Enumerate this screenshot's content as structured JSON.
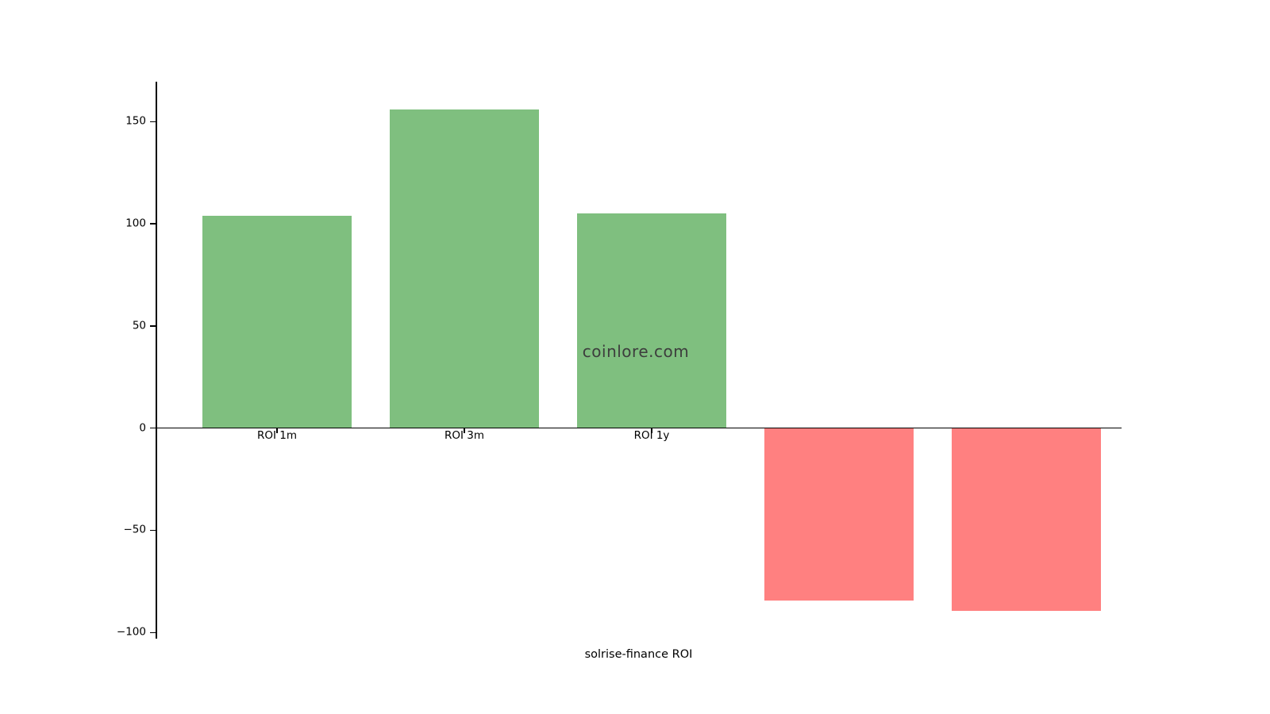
{
  "page": {
    "background": "#ffffff"
  },
  "watermark": {
    "text": "coinlore.com",
    "color": "#3d3d3d"
  },
  "chart_data": {
    "type": "bar",
    "title": "",
    "xlabel": "solrise-finance ROI",
    "ylabel": "",
    "categories": [
      "ROI 1m",
      "ROI 3m",
      "ROI 1y",
      "",
      ""
    ],
    "values": [
      104,
      156,
      105,
      -84,
      -89
    ],
    "positive_color": "#7fbf7f",
    "negative_color": "#ff8080",
    "axis_color": "#000000",
    "ylim": [
      -103,
      169.5
    ],
    "yticks": [
      150,
      100,
      50,
      0,
      -50,
      -100
    ],
    "ytick_labels": [
      "150",
      "100",
      "50",
      "0",
      "−50",
      "−100"
    ],
    "grid": false,
    "legend": null
  }
}
